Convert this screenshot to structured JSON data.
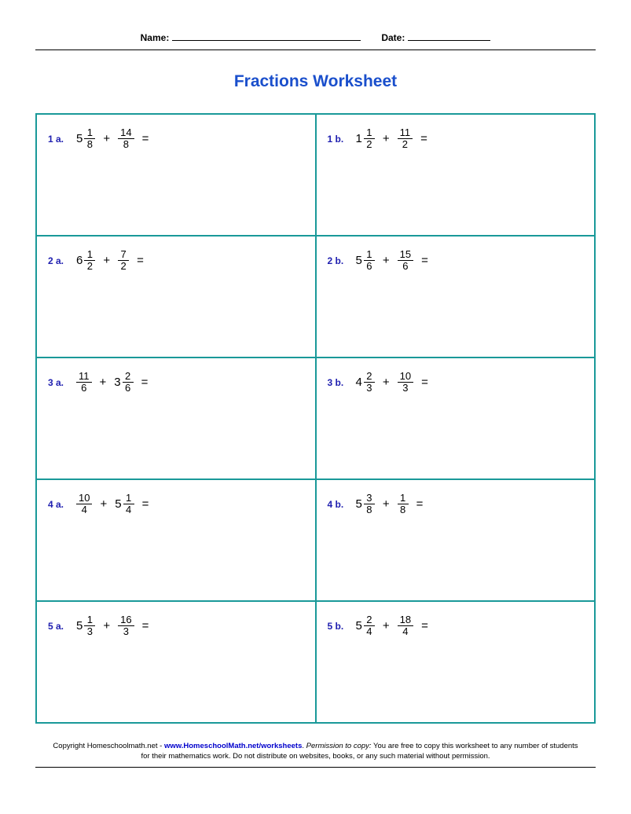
{
  "header": {
    "name_label": "Name:",
    "date_label": "Date:"
  },
  "title": {
    "text": "Fractions Worksheet",
    "color": "#1a4fcc"
  },
  "grid": {
    "border_color": "#1a9999",
    "label_color": "#2020b0",
    "rows": 5,
    "cols": 2
  },
  "problems": [
    {
      "label": "1 a.",
      "t1": {
        "type": "mixed",
        "whole": "5",
        "num": "1",
        "den": "8"
      },
      "t2": {
        "type": "frac",
        "num": "14",
        "den": "8"
      }
    },
    {
      "label": "1 b.",
      "t1": {
        "type": "mixed",
        "whole": "1",
        "num": "1",
        "den": "2"
      },
      "t2": {
        "type": "frac",
        "num": "11",
        "den": "2"
      }
    },
    {
      "label": "2 a.",
      "t1": {
        "type": "mixed",
        "whole": "6",
        "num": "1",
        "den": "2"
      },
      "t2": {
        "type": "frac",
        "num": "7",
        "den": "2"
      }
    },
    {
      "label": "2 b.",
      "t1": {
        "type": "mixed",
        "whole": "5",
        "num": "1",
        "den": "6"
      },
      "t2": {
        "type": "frac",
        "num": "15",
        "den": "6"
      }
    },
    {
      "label": "3 a.",
      "t1": {
        "type": "frac",
        "num": "11",
        "den": "6"
      },
      "t2": {
        "type": "mixed",
        "whole": "3",
        "num": "2",
        "den": "6"
      }
    },
    {
      "label": "3 b.",
      "t1": {
        "type": "mixed",
        "whole": "4",
        "num": "2",
        "den": "3"
      },
      "t2": {
        "type": "frac",
        "num": "10",
        "den": "3"
      }
    },
    {
      "label": "4 a.",
      "t1": {
        "type": "frac",
        "num": "10",
        "den": "4"
      },
      "t2": {
        "type": "mixed",
        "whole": "5",
        "num": "1",
        "den": "4"
      }
    },
    {
      "label": "4 b.",
      "t1": {
        "type": "mixed",
        "whole": "5",
        "num": "3",
        "den": "8"
      },
      "t2": {
        "type": "frac",
        "num": "1",
        "den": "8"
      }
    },
    {
      "label": "5 a.",
      "t1": {
        "type": "mixed",
        "whole": "5",
        "num": "1",
        "den": "3"
      },
      "t2": {
        "type": "frac",
        "num": "16",
        "den": "3"
      }
    },
    {
      "label": "5 b.",
      "t1": {
        "type": "mixed",
        "whole": "5",
        "num": "2",
        "den": "4"
      },
      "t2": {
        "type": "frac",
        "num": "18",
        "den": "4"
      }
    }
  ],
  "operator": "+",
  "equals": "=",
  "footer": {
    "copyright_prefix": "Copyright Homeschoolmath.net - ",
    "link_text": "www.HomeschoolMath.net/worksheets",
    "permission_label": "Permission to copy:",
    "permission_text": " You are free to copy this worksheet to any number of students for their mathematics work. Do not distribute on websites, books, or any such material without permission.",
    "separator": ".  "
  }
}
